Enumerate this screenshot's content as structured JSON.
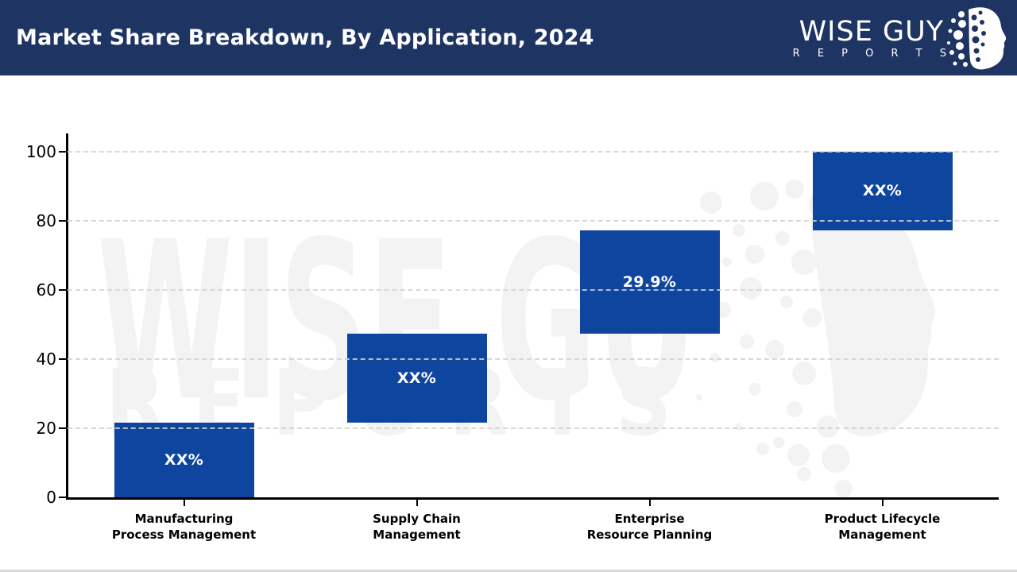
{
  "header": {
    "title": "Market Share Breakdown, By Application, 2024",
    "logo": {
      "brand_line1": "WISE GUY",
      "brand_line2": "R E P O R T S"
    }
  },
  "watermark": {
    "line1": "WISE GU",
    "line2": "R E P O R T S"
  },
  "chart_data": {
    "type": "bar",
    "variant": "floating-segment-waterfall",
    "title": "Market Share Breakdown, By Application, 2024",
    "categories": [
      [
        "Manufacturing",
        "Process Management"
      ],
      [
        "Supply Chain",
        "Management"
      ],
      [
        "Enterprise",
        "Resource Planning"
      ],
      [
        "Product Lifecycle",
        "Management"
      ]
    ],
    "segments": [
      {
        "category": "Manufacturing Process Management",
        "start": 0,
        "end": 21.5,
        "label": "XX%"
      },
      {
        "category": "Supply Chain Management",
        "start": 21.5,
        "end": 47.4,
        "label": "XX%"
      },
      {
        "category": "Enterprise Resource Planning",
        "start": 47.4,
        "end": 77.3,
        "label": "29.9%"
      },
      {
        "category": "Product Lifecycle Management",
        "start": 77.3,
        "end": 100,
        "label": "XX%"
      }
    ],
    "ylim": [
      0,
      100
    ],
    "yticks": [
      0,
      20,
      40,
      60,
      80,
      100
    ],
    "xlabel": "",
    "ylabel": "",
    "grid": "horizontal-dashed-over-bars",
    "legend": "none"
  },
  "colors": {
    "header_bg": "#1e3563",
    "header_text": "#ffffff",
    "bar_fill": "#0e459f",
    "bar_label": "#ffffff",
    "axis": "#000000",
    "gridline": "#d3d3d3",
    "watermark": "#f3f3f3",
    "background": "#ffffff"
  }
}
